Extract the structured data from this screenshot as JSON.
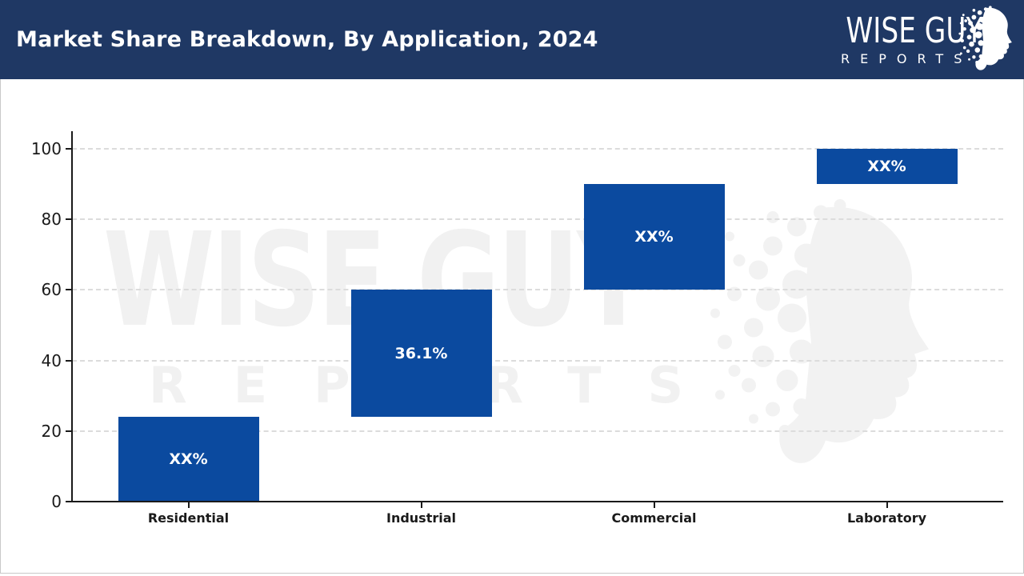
{
  "header": {
    "title": "Market Share Breakdown, By Application, 2024",
    "logo": {
      "line1": "WISE GUY",
      "line2": "REPORTS"
    }
  },
  "watermark": {
    "line1": "WISE GUY",
    "line2": "REPORTS"
  },
  "chart_data": {
    "type": "bar",
    "subtype": "waterfall",
    "title": "Market Share Breakdown, By Application, 2024",
    "categories": [
      "Residential",
      "Industrial",
      "Commercial",
      "Laboratory"
    ],
    "segments": [
      {
        "category": "Residential",
        "start": 0,
        "end": 24,
        "label": "XX%",
        "estimated_value": 24
      },
      {
        "category": "Industrial",
        "start": 24,
        "end": 60.1,
        "label": "36.1%",
        "estimated_value": 36.1
      },
      {
        "category": "Commercial",
        "start": 60.1,
        "end": 90.1,
        "label": "XX%",
        "estimated_value": 30
      },
      {
        "category": "Laboratory",
        "start": 90.1,
        "end": 100,
        "label": "XX%",
        "estimated_value": 9.9
      }
    ],
    "yticks": [
      0,
      20,
      40,
      60,
      80,
      100
    ],
    "ylim": [
      0,
      105
    ],
    "xlabel": "",
    "ylabel": "",
    "grid": "horizontal-dashed",
    "legend": "none",
    "bar_color": "#0b4a9f",
    "bar_label_color": "#ffffff"
  }
}
